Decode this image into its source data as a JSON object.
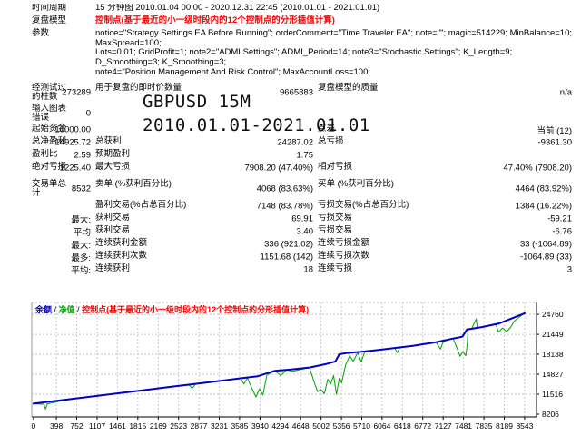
{
  "report": {
    "rows": [
      {
        "c1": "时间周期",
        "span": true,
        "c3": "15 分钟图 2010.01.04 00:00 - 2020.12.31 22:45 (2010.01.01 - 2021.01.01)"
      },
      {
        "c1": "复盘模型",
        "span": true,
        "red": true,
        "c3": "控制点(基于最近的小一级时段内的12个控制点的分形插值计算)"
      },
      {
        "c1": "参数",
        "span": true,
        "c3": [
          "notice=\"Strategy Settings EA Before Running\"; orderComment=\"Time Traveler EA\"; note=\"\"; magic=514229; MinBalance=10; MaxSpread=100;",
          "Lots=0.01; GridProfit=1; note2=\"ADMI Settings\"; ADMI_Period=14; note3=\"Stochastic Settings\"; K_Length=9; D_Smoothing=3; K_Smoothing=3;",
          "note4=\"Position Management And Risk Control\"; MaxAccountLoss=100;"
        ]
      },
      {
        "gap": true,
        "c1": "经测试过的柱数",
        "c2": "273289",
        "c3": "用于复盘的即时价数量",
        "c4": "9665883",
        "c5": "复盘模型的质量",
        "c6": "n/a"
      },
      {
        "c1": "输入图表错误",
        "c2": "0"
      },
      {
        "c1": "起始资金",
        "c2": "10000.00",
        "c5": "点差",
        "c6": "当前 (12)"
      },
      {
        "c1": "总净盈利",
        "c2": "14925.72",
        "c3": "总获利",
        "c4": "24287.02",
        "c5": "总亏损",
        "c6": "-9361.30"
      },
      {
        "c1": "盈利比",
        "c2": "2.59",
        "c3": "预期盈利",
        "c4": "1.75"
      },
      {
        "c1": "绝对亏损",
        "c2": "1225.40",
        "c3": "最大亏损",
        "c4": "7908.20 (47.40%)",
        "c5": "相对亏损",
        "c6": "47.40% (7908.20)"
      },
      {
        "gap": true,
        "c1": "交易单总计",
        "c2": "8532",
        "c3": "卖单 (%获利百分比)",
        "c4": "4068 (83.63%)",
        "c5": "买单 (%获利百分比)",
        "c6": "4464 (83.92%)"
      },
      {
        "c3": "盈利交易(%占总百分比)",
        "c4": "7148 (83.78%)",
        "c5": "亏损交易(%占总百分比)",
        "c6": "1384 (16.22%)"
      },
      {
        "c2": "最大:",
        "c3": "获利交易",
        "c4": "69.91",
        "c5": "亏损交易",
        "c6": "-59.21"
      },
      {
        "c2": "平均",
        "c3": "获利交易",
        "c4": "3.40",
        "c5": "亏损交易",
        "c6": "-6.76"
      },
      {
        "c2": "最大:",
        "c3": "连续获利金额",
        "c4": "336 (921.02)",
        "c5": "连续亏损金额",
        "c6": "33 (-1064.89)"
      },
      {
        "c2": "最多:",
        "c3": "连续获利次数",
        "c4": "1151.68 (142)",
        "c5": "连续亏损次数",
        "c6": "-1064.89 (33)"
      },
      {
        "c2": "平均:",
        "c3": "连续获利",
        "c4": "18",
        "c5": "连续亏损",
        "c6": "3"
      }
    ]
  },
  "watermark": {
    "line1": "GBPUSD 15M",
    "line2": "2010.01.01-2021.01.01"
  },
  "chart_legend": {
    "balance": "余额",
    "equity": "净值",
    "model": "控制点(基于最近的小一级时段内的12个控制点的分形插值计算)",
    "separator": " / "
  },
  "colors": {
    "balance": "#0000C8",
    "equity": "#00A000",
    "model_text": "#FF0000",
    "grid": "#C9C9C9",
    "axis": "#000000"
  },
  "chart_data": {
    "type": "line",
    "title": "",
    "xlabel": "",
    "ylabel": "",
    "grid": true,
    "legend_position": "top-left",
    "x_ticks": [
      0,
      398,
      752,
      1107,
      1461,
      1815,
      2169,
      2523,
      2877,
      3231,
      3585,
      3940,
      4294,
      4648,
      5002,
      5356,
      5710,
      6064,
      6418,
      6772,
      7127,
      7481,
      7835,
      8189,
      8543
    ],
    "y_ticks": [
      24760,
      21449,
      18138,
      14827,
      11516,
      8206
    ],
    "x_range": [
      -30,
      8750
    ],
    "y_range": [
      7750,
      26730
    ],
    "series": [
      {
        "name": "余额",
        "color": "#0000C8",
        "width": 2,
        "points": [
          [
            0,
            9950
          ],
          [
            600,
            10650
          ],
          [
            1200,
            11350
          ],
          [
            1800,
            12050
          ],
          [
            2400,
            12750
          ],
          [
            3000,
            13450
          ],
          [
            3600,
            14150
          ],
          [
            3900,
            14500
          ],
          [
            4050,
            14950
          ],
          [
            4200,
            15400
          ],
          [
            4500,
            15650
          ],
          [
            4800,
            15950
          ],
          [
            5100,
            16550
          ],
          [
            5250,
            16950
          ],
          [
            5320,
            18150
          ],
          [
            5450,
            18350
          ],
          [
            5700,
            18550
          ],
          [
            6000,
            18850
          ],
          [
            6600,
            19550
          ],
          [
            7000,
            20150
          ],
          [
            7300,
            20750
          ],
          [
            7460,
            21050
          ],
          [
            7540,
            22250
          ],
          [
            7800,
            22650
          ],
          [
            8100,
            23250
          ],
          [
            8543,
            24930
          ]
        ]
      },
      {
        "name": "净值",
        "color": "#00A000",
        "width": 1,
        "points": [
          [
            0,
            9950
          ],
          [
            180,
            9850
          ],
          [
            210,
            9050
          ],
          [
            240,
            9900
          ],
          [
            600,
            10650
          ],
          [
            1200,
            11350
          ],
          [
            1800,
            12050
          ],
          [
            2400,
            12750
          ],
          [
            2700,
            13100
          ],
          [
            2760,
            12500
          ],
          [
            2820,
            13200
          ],
          [
            3000,
            13450
          ],
          [
            3600,
            14150
          ],
          [
            3660,
            13200
          ],
          [
            3720,
            14200
          ],
          [
            3800,
            12500
          ],
          [
            3870,
            11050
          ],
          [
            3930,
            12400
          ],
          [
            3990,
            11400
          ],
          [
            4060,
            14700
          ],
          [
            4200,
            15400
          ],
          [
            4300,
            14600
          ],
          [
            4400,
            15550
          ],
          [
            4500,
            15300
          ],
          [
            4800,
            15950
          ],
          [
            4880,
            13600
          ],
          [
            4940,
            11950
          ],
          [
            5000,
            12300
          ],
          [
            5060,
            11600
          ],
          [
            5120,
            14000
          ],
          [
            5170,
            13200
          ],
          [
            5220,
            14600
          ],
          [
            5270,
            11500
          ],
          [
            5320,
            14200
          ],
          [
            5360,
            13400
          ],
          [
            5430,
            16400
          ],
          [
            5500,
            17900
          ],
          [
            5560,
            17000
          ],
          [
            5640,
            18400
          ],
          [
            5700,
            16900
          ],
          [
            5760,
            18500
          ],
          [
            6000,
            18850
          ],
          [
            6280,
            19200
          ],
          [
            6330,
            18400
          ],
          [
            6380,
            19350
          ],
          [
            6600,
            19550
          ],
          [
            7000,
            20150
          ],
          [
            7080,
            19000
          ],
          [
            7130,
            20250
          ],
          [
            7300,
            20750
          ],
          [
            7370,
            19100
          ],
          [
            7420,
            17800
          ],
          [
            7470,
            18600
          ],
          [
            7520,
            17900
          ],
          [
            7545,
            19800
          ],
          [
            7560,
            22250
          ],
          [
            7620,
            22300
          ],
          [
            7700,
            24000
          ],
          [
            7720,
            22500
          ],
          [
            7800,
            22650
          ],
          [
            8040,
            23200
          ],
          [
            8090,
            21800
          ],
          [
            8160,
            22500
          ],
          [
            8230,
            21900
          ],
          [
            8300,
            22600
          ],
          [
            8360,
            23600
          ],
          [
            8450,
            24300
          ],
          [
            8543,
            24930
          ]
        ]
      }
    ]
  }
}
